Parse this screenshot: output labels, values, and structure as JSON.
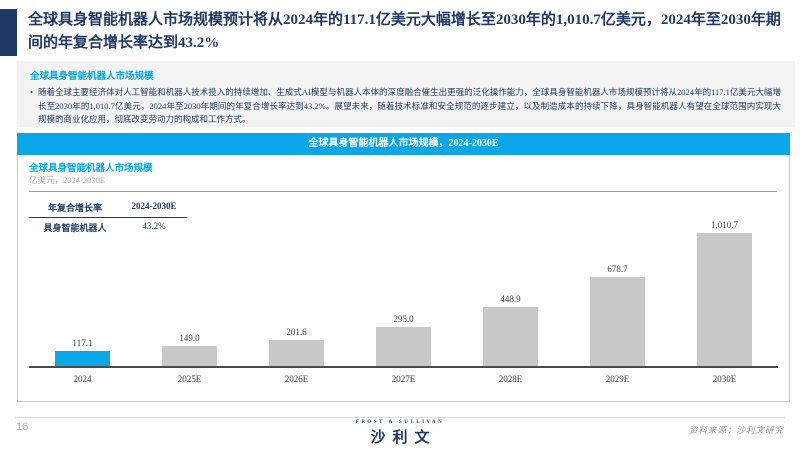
{
  "page": {
    "title": "全球具身智能机器人市场规模预计将从2024年的117.1亿美元大幅增长至2030年的1,010.7亿美元，2024年至2030年期间的年复合增长率达到43.2%",
    "page_number": "16",
    "source_note": "资料来源：沙利文研究",
    "logo": {
      "top_line": "FROST & SULLIVAN",
      "name": "沙利文"
    }
  },
  "summary": {
    "heading": "全球具身智能机器人市场规模",
    "bullet_marker": "•",
    "bullet_text": "随着全球主要经济体对人工智能和机器人技术投入的持续增加、生成式AI模型与机器人本体的深度融合催生出更强的泛化操作能力，全球具身智能机器人市场规模预计将从2024年的117.1亿美元大幅增长至2030年的1,010.7亿美元，2024年至2030年期间的年复合增长率达到43.2%。展望未来，随着技术标准和安全规范的逐步建立，以及制造成本的持续下降，具身智能机器人有望在全球范围内实现大规模的商业化应用，彻底改变劳动力的构成和工作方式。"
  },
  "chart_panel": {
    "banner": "全球具身智能机器人市场规模，2024-2030E",
    "heading": "全球具身智能机器人市场规模",
    "unit_label": "亿美元，2024-2030E",
    "cagr_table": {
      "header": [
        "年复合增长率",
        "2024-2030E"
      ],
      "rows": [
        [
          "具身智能机器人",
          "43.2%"
        ]
      ]
    }
  },
  "chart_data": {
    "type": "bar",
    "title": "全球具身智能机器人市场规模，2024-2030E",
    "ylabel": "亿美元",
    "categories": [
      "2024",
      "2025E",
      "2026E",
      "2027E",
      "2028E",
      "2029E",
      "2030E"
    ],
    "values": [
      117.1,
      149.0,
      201.6,
      295.0,
      448.9,
      678.7,
      1010.7
    ],
    "value_labels": [
      "117.1",
      "149.0",
      "201.6",
      "295.0",
      "448.9",
      "678.7",
      "1,010.7"
    ],
    "ylim": [
      0,
      1050
    ],
    "grid": false,
    "legend": false,
    "highlight_index": 0,
    "highlight_color": "#0AA7E8",
    "bar_color": "#C8C8C8"
  },
  "colors": {
    "brand_navy": "#1F3864",
    "accent_cyan": "#00A9E8",
    "banner_bg": "#0BA6E8",
    "summary_bg": "#F3F3F4",
    "gray_bar": "#C8C8C8"
  }
}
